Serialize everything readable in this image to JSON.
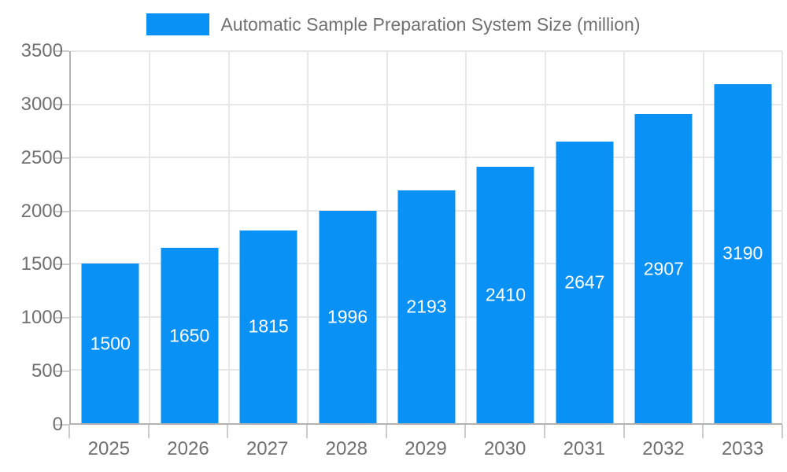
{
  "legend": {
    "series_label": "Automatic Sample Preparation System Size (million)"
  },
  "chart_data": {
    "type": "bar",
    "title": "Automatic Sample Preparation System Size (million)",
    "categories": [
      "2025",
      "2026",
      "2027",
      "2028",
      "2029",
      "2030",
      "2031",
      "2032",
      "2033"
    ],
    "series": [
      {
        "name": "Automatic Sample Preparation System Size (million)",
        "values": [
          1500,
          1650,
          1815,
          1996,
          2193,
          2410,
          2647,
          2907,
          3190
        ]
      }
    ],
    "values": [
      1500,
      1650,
      1815,
      1996,
      2193,
      2410,
      2647,
      2907,
      3190
    ],
    "bar_labels": [
      "1500",
      "1650",
      "1815",
      "1996",
      "2193",
      "2410",
      "2647",
      "2907",
      "3190"
    ],
    "xlabel": "",
    "ylabel": "",
    "ylim": [
      0,
      3500
    ],
    "ytick_step": 500,
    "ytick_labels": [
      "0",
      "500",
      "1000",
      "1500",
      "2000",
      "2500",
      "3000",
      "3500"
    ],
    "grid": true,
    "legend_position": "top-center",
    "colors": {
      "bar": "#0991f5",
      "bar_label": "#ffffff",
      "axis": "#b3b3b3",
      "grid": "#e7e7e7",
      "tick": "#cccccc",
      "text": "#707070"
    }
  }
}
